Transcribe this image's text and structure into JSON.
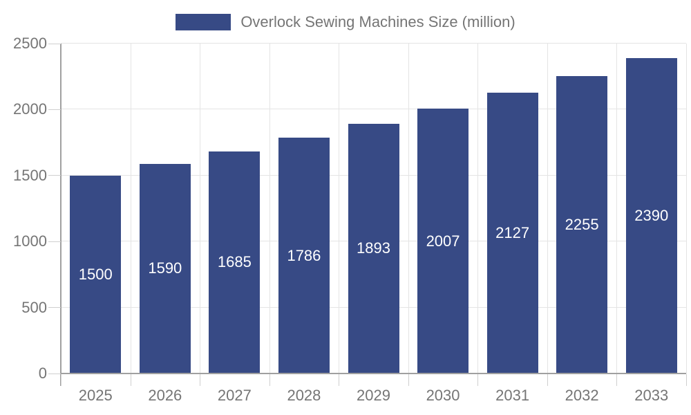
{
  "legend": {
    "label": "Overlock Sewing Machines Size (million)"
  },
  "chart_data": {
    "type": "bar",
    "title": "Overlock Sewing Machines Size (million)",
    "categories": [
      "2025",
      "2026",
      "2027",
      "2028",
      "2029",
      "2030",
      "2031",
      "2032",
      "2033"
    ],
    "series": [
      {
        "name": "Overlock Sewing Machines Size (million)",
        "values": [
          1500,
          1590,
          1685,
          1786,
          1893,
          2007,
          2127,
          2255,
          2390
        ]
      }
    ],
    "xlabel": "",
    "ylabel": "",
    "ylim": [
      0,
      2500
    ],
    "yticks": [
      0,
      500,
      1000,
      1500,
      2000,
      2500
    ],
    "grid": true,
    "legend_position": "top",
    "bar_label_position": "inside-center"
  },
  "colors": {
    "bar": "#374a85",
    "bar_label": "#ffffff",
    "legend_text": "#757575",
    "axis_text": "#757575",
    "gridline": "#e4e4e4",
    "axis_line": "#a0a0a0",
    "tick_line": "#cfcfcf",
    "background": "#ffffff"
  }
}
